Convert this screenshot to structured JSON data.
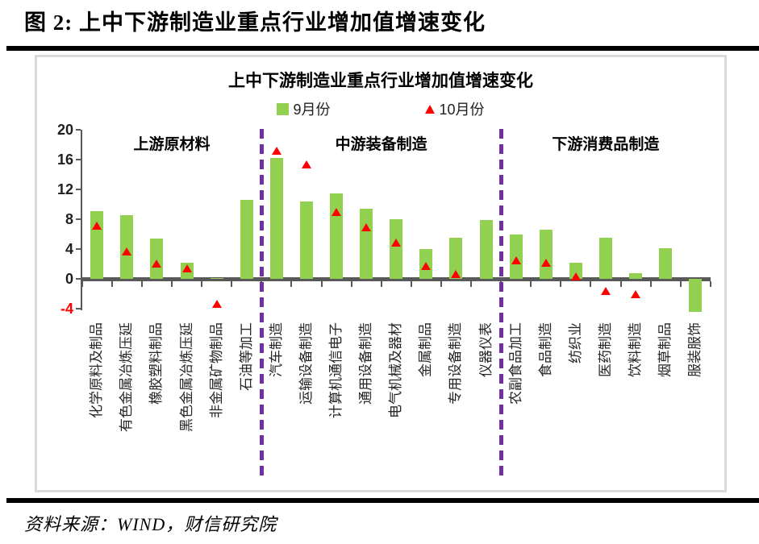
{
  "page": {
    "figure_title": "图 2:  上中下游制造业重点行业增加值增速变化",
    "source_note": "资料来源：WIND，财信研究院"
  },
  "chart_data": {
    "type": "bar",
    "title": "上中下游制造业重点行业增加值增速变化",
    "legend_position": "top",
    "grid": false,
    "categories": [
      "化学原料及制品",
      "有色金属冶炼压延",
      "橡胶塑料制品",
      "黑色金属冶炼压延",
      "非金属矿物制品",
      "石油等加工",
      "汽车制造",
      "运输设备制造",
      "计算机通信电子",
      "通用设备制造",
      "电气机械及器材",
      "金属制品",
      "专用设备制造",
      "仪器仪表",
      "农副食品加工",
      "食品制造",
      "纺织业",
      "医药制造",
      "饮料制造",
      "烟草制品",
      "服装服饰"
    ],
    "series": [
      {
        "name": "9月份",
        "marker": "square",
        "color": "#92D050",
        "values": [
          9.1,
          8.5,
          5.4,
          2.2,
          0.1,
          10.6,
          16.2,
          10.4,
          11.5,
          9.4,
          8.0,
          4.0,
          5.5,
          7.9,
          6.0,
          6.6,
          2.2,
          5.5,
          0.8,
          4.1,
          -4.4
        ]
      },
      {
        "name": "10月份",
        "marker": "triangle",
        "color": "#FF0000",
        "values": [
          7.1,
          3.7,
          2.1,
          1.4,
          -3.3,
          null,
          17.2,
          15.4,
          9.0,
          6.9,
          4.9,
          1.7,
          0.7,
          null,
          2.5,
          2.2,
          0.3,
          -1.6,
          -2.0,
          null,
          null
        ]
      }
    ],
    "sections": [
      {
        "label": "上游原材料",
        "from": 0,
        "to": 5
      },
      {
        "label": "中游装备制造",
        "from": 6,
        "to": 13
      },
      {
        "label": "下游消费品制造",
        "from": 14,
        "to": 20
      }
    ],
    "y_axis": {
      "ticks": [
        20,
        16,
        12,
        8,
        4,
        0,
        -4
      ],
      "max": 20,
      "min": -4.75,
      "tick_color": "#1F1F1F",
      "negative_tick_color": "#FF0000"
    },
    "axis_color": "#595959",
    "separator_color": "#7030A0"
  }
}
